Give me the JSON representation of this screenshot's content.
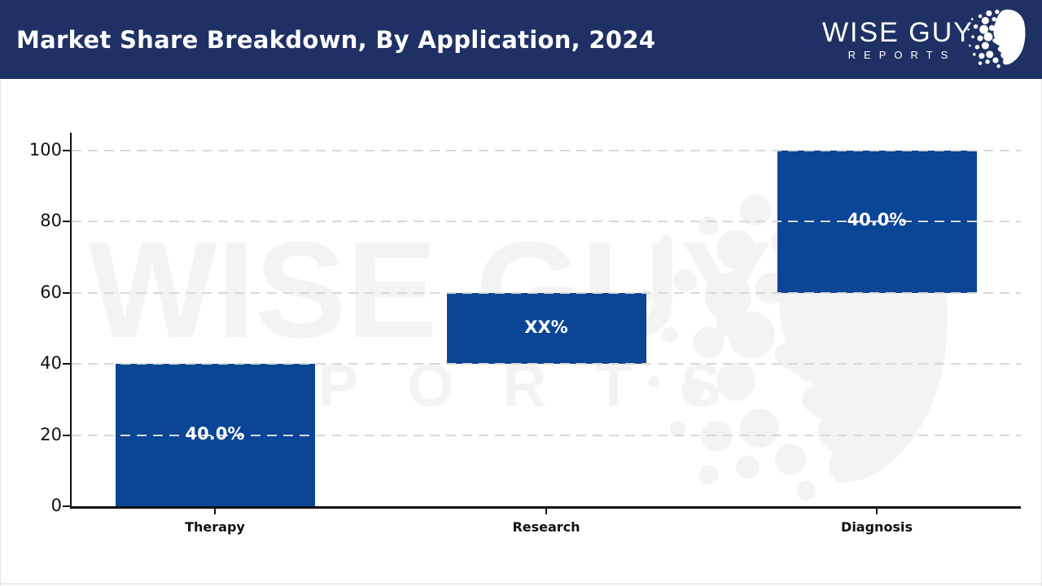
{
  "header": {
    "title": "Market Share Breakdown, By Application, 2024",
    "logo": {
      "primary": "WISE GUY",
      "secondary": "REPORTS"
    }
  },
  "watermark": {
    "primary": "WISE GUY",
    "secondary": "REPORTS"
  },
  "colors": {
    "header_bg": "#1F3164",
    "bar": "#0B4596",
    "grid": "#D8D8D8",
    "axis": "#111111",
    "text": "#111111",
    "watermark": "#F3F3F3",
    "title_text": "#FFFFFF",
    "value_label_text": "#FFFFFF"
  },
  "chart_data": {
    "type": "bar",
    "subtype": "waterfall",
    "title": "Market Share Breakdown, By Application, 2024",
    "categories": [
      "Therapy",
      "Research",
      "Diagnosis"
    ],
    "bars": [
      {
        "category": "Therapy",
        "start": 0,
        "end": 40,
        "label": "40.0%"
      },
      {
        "category": "Research",
        "start": 40,
        "end": 60,
        "label": "XX%"
      },
      {
        "category": "Diagnosis",
        "start": 60,
        "end": 100,
        "label": "40.0%"
      }
    ],
    "y_ticks": [
      0,
      20,
      40,
      60,
      80,
      100
    ],
    "ylim": [
      0,
      104.6
    ],
    "xlabel": "",
    "ylabel": "",
    "grid": "horizontal-dashed",
    "legend": "none",
    "bar_color": "#0B4596"
  }
}
